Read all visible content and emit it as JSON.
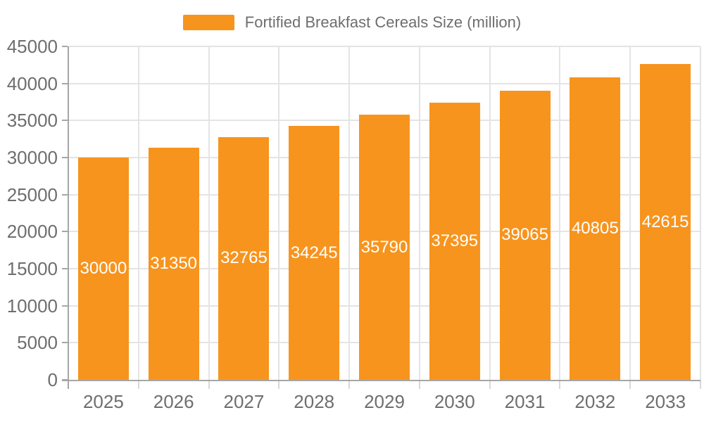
{
  "chart_data": {
    "type": "bar",
    "title": "Fortified Breakfast Cereals Size (million)",
    "categories": [
      "2025",
      "2026",
      "2027",
      "2028",
      "2029",
      "2030",
      "2031",
      "2032",
      "2033"
    ],
    "values": [
      30000,
      31350,
      32765,
      34245,
      35790,
      37395,
      39065,
      40805,
      42615
    ],
    "xlabel": "",
    "ylabel": "",
    "ylim": [
      0,
      45000
    ],
    "ytick_step": 5000,
    "ytick_labels": [
      "0",
      "5000",
      "10000",
      "15000",
      "20000",
      "25000",
      "30000",
      "35000",
      "40000",
      "45000"
    ],
    "grid": true,
    "legend_position": "top-center",
    "colors": {
      "bar": "#F7941E",
      "value_label": "#FFFFFF",
      "axis_line": "#A6A6A6",
      "gridline": "#E4E4E4",
      "x_tick": "#D8D8D8",
      "tick_label": "#6E6E6E",
      "legend_text": "#6E6E6E"
    }
  }
}
